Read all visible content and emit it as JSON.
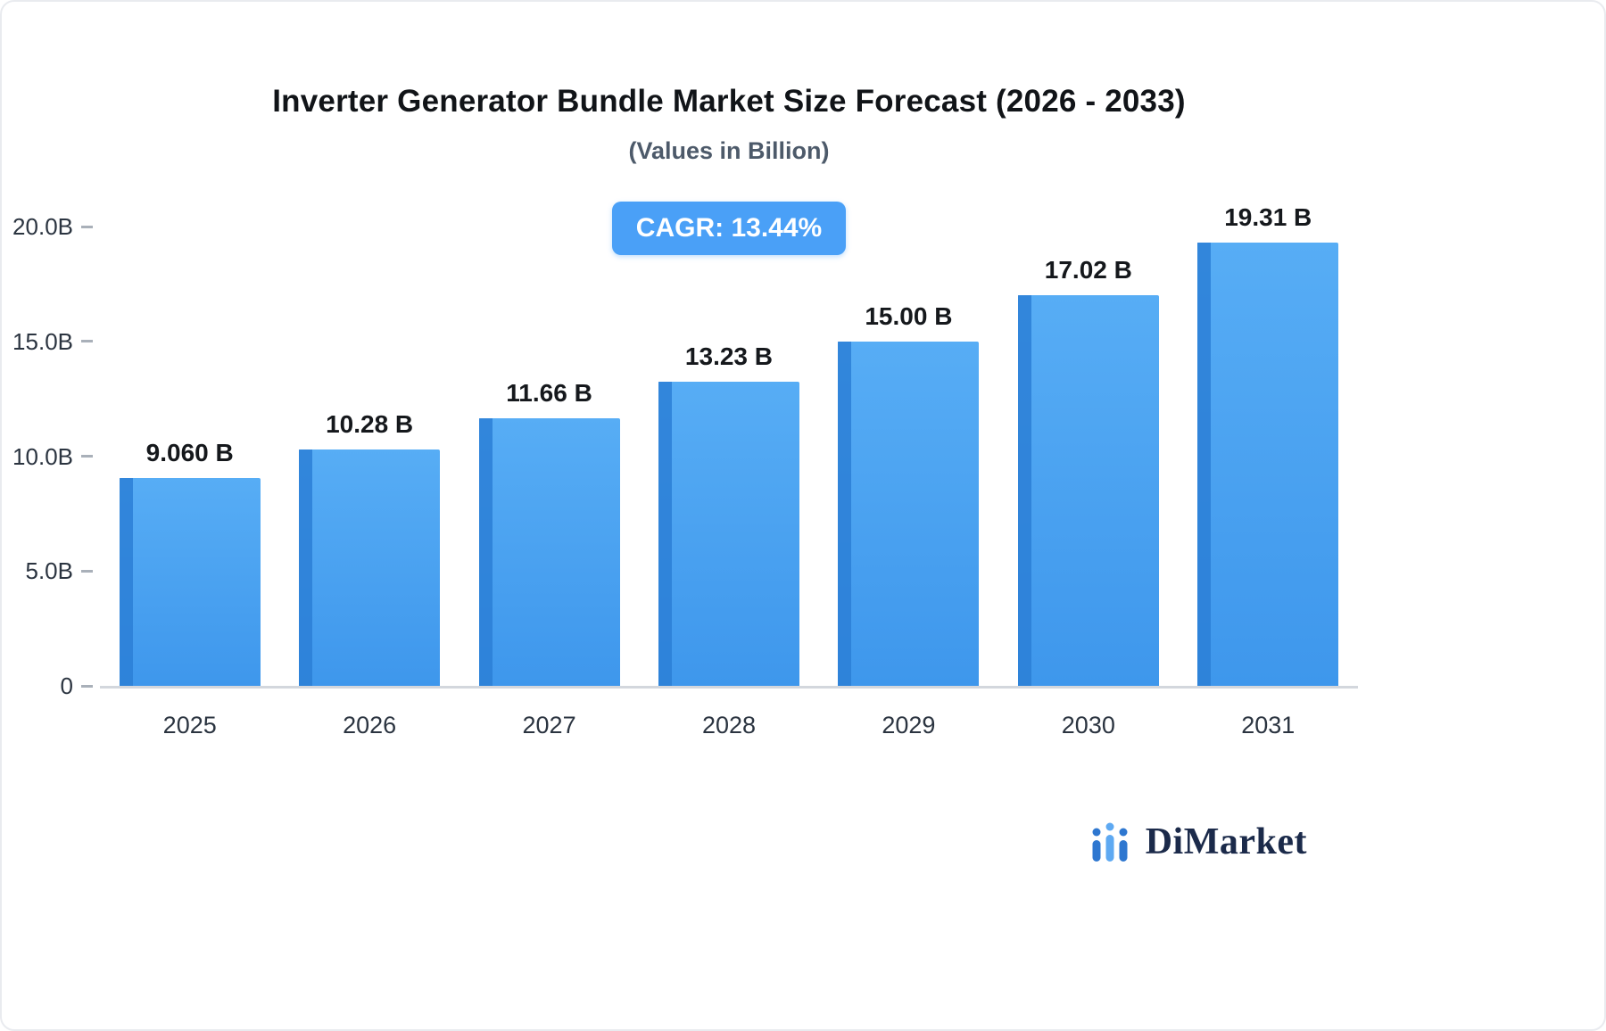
{
  "header": {
    "title": "Inverter Generator Bundle Market Size Forecast (2026 - 2033)",
    "subtitle": "(Values in Billion)"
  },
  "badge": {
    "label": "CAGR: 13.44%"
  },
  "logo": {
    "text": "DiMarket",
    "icon": "bar-chart-logo-icon"
  },
  "colors": {
    "bar_main": "#4aa3f0",
    "bar_edge": "#2c7fd6",
    "badge_bg": "#4aa0f7",
    "logo_blue": "#2e77d0",
    "logo_navy": "#1b2a4a"
  },
  "chart_data": {
    "type": "bar",
    "title": "Inverter Generator Bundle Market Size Forecast (2026 - 2033)",
    "subtitle": "(Values in Billion)",
    "categories": [
      "2025",
      "2026",
      "2027",
      "2028",
      "2029",
      "2030",
      "2031"
    ],
    "values": [
      9.06,
      10.28,
      11.66,
      13.23,
      15.0,
      17.02,
      19.31
    ],
    "value_labels": [
      "9.060 B",
      "10.28 B",
      "11.66 B",
      "13.23 B",
      "15.00 B",
      "17.02 B",
      "19.31 B"
    ],
    "xlabel": "",
    "ylabel": "",
    "ylim": [
      0,
      20
    ],
    "yticks": [
      {
        "value": 0,
        "label": "0"
      },
      {
        "value": 5,
        "label": "5.0B"
      },
      {
        "value": 10,
        "label": "10.0B"
      },
      {
        "value": 15,
        "label": "15.0B"
      },
      {
        "value": 20,
        "label": "20.0B"
      }
    ],
    "grid": false,
    "legend": false,
    "annotations": [
      "CAGR: 13.44%"
    ]
  }
}
